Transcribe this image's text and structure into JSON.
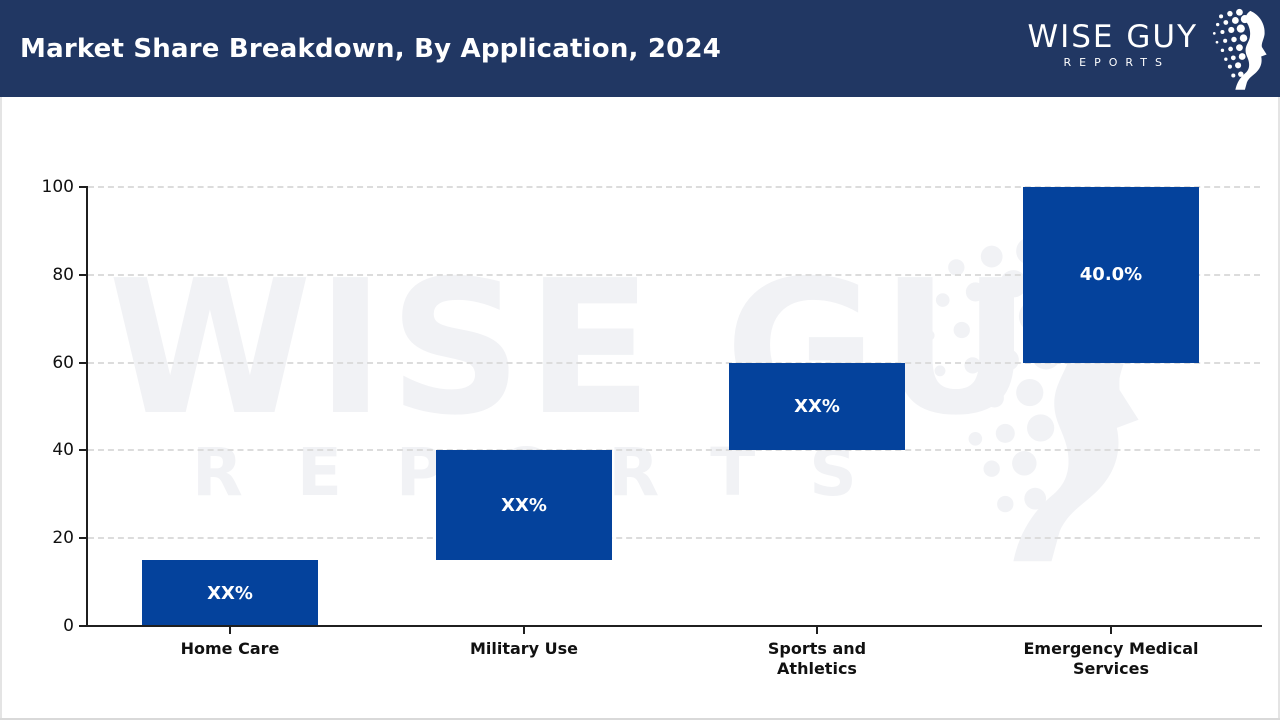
{
  "header": {
    "title": "Market Share Breakdown, By Application, 2024",
    "logo": {
      "line1": "WISE GUY",
      "line2": "REPORTS"
    }
  },
  "watermark": {
    "line1": "WISE GUY",
    "line2": "REPORTS"
  },
  "colors": {
    "header_bg": "#213763",
    "bar": "#04429c",
    "bar_label": "#ffffff",
    "axis": "#1f1f1f",
    "gridline": "#dcdcdc",
    "watermark": "#f1f2f5"
  },
  "chart_data": {
    "type": "bar",
    "subtype": "waterfall",
    "title": "Market Share Breakdown, By Application, 2024",
    "categories": [
      "Home Care",
      "Military Use",
      "Sports and Athletics",
      "Emergency Medical Services"
    ],
    "categories_display": [
      [
        "Home Care"
      ],
      [
        "Military Use"
      ],
      [
        "Sports and",
        "Athletics"
      ],
      [
        "Emergency Medical",
        "Services"
      ]
    ],
    "segments": [
      {
        "category": "Home Care",
        "start": 0,
        "end": 15,
        "increment": 15,
        "label": "XX%"
      },
      {
        "category": "Military Use",
        "start": 15,
        "end": 40,
        "increment": 25,
        "label": "XX%"
      },
      {
        "category": "Sports and Athletics",
        "start": 40,
        "end": 60,
        "increment": 20,
        "label": "XX%"
      },
      {
        "category": "Emergency Medical Services",
        "start": 60,
        "end": 100,
        "increment": 40,
        "label": "40.0%"
      }
    ],
    "ylim": [
      0,
      100
    ],
    "yticks": [
      0,
      20,
      40,
      60,
      80,
      100
    ],
    "xlabel": "",
    "ylabel": "",
    "grid": "horizontal-dashed",
    "legend": "none"
  }
}
